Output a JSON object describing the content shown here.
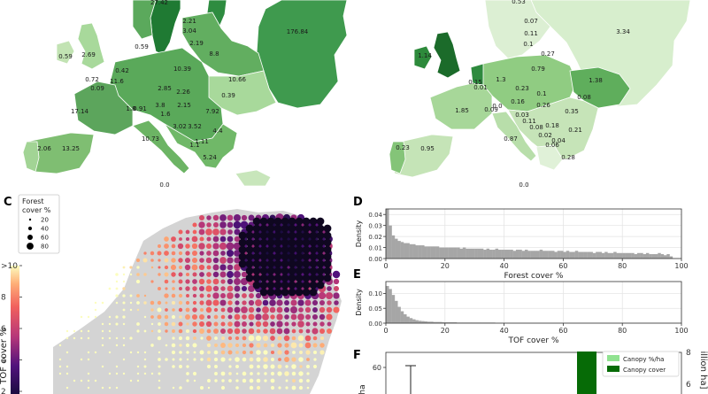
{
  "panels": {
    "C": "C",
    "D": "D",
    "E": "E",
    "F": "F"
  },
  "colors": {
    "land_gray": "#d4d4d4",
    "hist_bar": "#a6a6a6",
    "canopy_light": "#90e290",
    "canopy_dark": "#066b06"
  },
  "chart_data": [
    {
      "type": "choropleth",
      "panel": "A",
      "labels": [
        "27.42",
        "2.21",
        "176.84",
        "3.04",
        "0.59",
        "2.69",
        "0.59",
        "2.19",
        "8.8",
        "0.42",
        "10.39",
        "0.72",
        "11.6",
        "10.66",
        "0.09",
        "2.85",
        "2.26",
        "0.39",
        "17.14",
        "1.8",
        "0.91",
        "3.8",
        "2.15",
        "7.92",
        "1.6",
        "3.52",
        "3.02",
        "4.4",
        "10.73",
        "1.11",
        "1.1",
        "2.06",
        "13.25",
        "5.24",
        "0.0"
      ]
    },
    {
      "type": "choropleth",
      "panel": "B",
      "labels": [
        "0.53",
        "3.34",
        "0.07",
        "0.11",
        "1.14",
        "0.1",
        "0.79",
        "0.27",
        "1.3",
        "0.15",
        "0.01",
        "0.23",
        "0.1",
        "1.38",
        "0.08",
        "1.85",
        "0.09",
        "0.16",
        "0.26",
        "0.35",
        "0.0",
        "0.03",
        "0.11",
        "0.18",
        "0.08",
        "0.02",
        "0.21",
        "0.04",
        "0.87",
        "0.06",
        "0.23",
        "0.95",
        "0.28",
        "0.0"
      ]
    },
    {
      "type": "scatter",
      "panel": "C",
      "legend_title": "Forest\ncover %",
      "size_legend": [
        "20",
        "40",
        "60",
        "80"
      ],
      "colorbar": {
        "label": "TOF cover %",
        "ticks": [
          ">10",
          "8",
          "6",
          "4",
          "2"
        ],
        "range": [
          0,
          10
        ]
      }
    },
    {
      "type": "bar",
      "panel": "D",
      "xlabel": "Forest cover %",
      "ylabel": "Density",
      "xlim": [
        0,
        100
      ],
      "ylim": [
        0,
        0.045
      ],
      "xticks": [
        "0",
        "20",
        "40",
        "60",
        "80",
        "100"
      ],
      "yticks": [
        "0.00",
        "0.01",
        "0.02",
        "0.03",
        "0.04"
      ],
      "bin_width": 1,
      "values": [
        0.046,
        0.03,
        0.021,
        0.018,
        0.016,
        0.015,
        0.014,
        0.014,
        0.013,
        0.013,
        0.012,
        0.012,
        0.012,
        0.011,
        0.011,
        0.011,
        0.011,
        0.011,
        0.01,
        0.01,
        0.01,
        0.01,
        0.01,
        0.01,
        0.01,
        0.009,
        0.01,
        0.009,
        0.009,
        0.009,
        0.009,
        0.009,
        0.009,
        0.008,
        0.009,
        0.008,
        0.008,
        0.009,
        0.008,
        0.008,
        0.008,
        0.008,
        0.008,
        0.007,
        0.008,
        0.008,
        0.007,
        0.008,
        0.007,
        0.007,
        0.007,
        0.007,
        0.008,
        0.007,
        0.007,
        0.007,
        0.007,
        0.006,
        0.007,
        0.007,
        0.006,
        0.007,
        0.006,
        0.006,
        0.007,
        0.006,
        0.006,
        0.006,
        0.006,
        0.006,
        0.005,
        0.006,
        0.006,
        0.005,
        0.006,
        0.005,
        0.005,
        0.006,
        0.005,
        0.005,
        0.005,
        0.005,
        0.005,
        0.005,
        0.004,
        0.005,
        0.005,
        0.004,
        0.005,
        0.004,
        0.004,
        0.004,
        0.005,
        0.004,
        0.003,
        0.004,
        0.002,
        0,
        0,
        0
      ]
    },
    {
      "type": "bar",
      "panel": "E",
      "xlabel": "TOF cover %",
      "ylabel": "Density",
      "xlim": [
        0,
        100
      ],
      "ylim": [
        0,
        0.14
      ],
      "xticks": [
        "0",
        "20",
        "40",
        "60",
        "80",
        "100"
      ],
      "yticks": [
        "0.00",
        "0.05",
        "0.10"
      ],
      "bin_width": 1,
      "values": [
        0.125,
        0.115,
        0.095,
        0.075,
        0.055,
        0.04,
        0.03,
        0.022,
        0.017,
        0.013,
        0.01,
        0.008,
        0.007,
        0.006,
        0.005,
        0.005,
        0.004,
        0.004,
        0.004,
        0.003,
        0.003,
        0.003,
        0.003,
        0.003,
        0.002,
        0.002,
        0.002,
        0.002,
        0.002,
        0.002,
        0.002,
        0.002,
        0.002,
        0.002,
        0.002,
        0.002,
        0.002,
        0.001,
        0.001,
        0.001,
        0.001,
        0.001,
        0.001,
        0.001,
        0.001,
        0.001,
        0.001,
        0.001,
        0.001,
        0.001,
        0.001,
        0.001,
        0.001,
        0.001,
        0.001,
        0.001,
        0.001,
        0.001,
        0.001,
        0.001,
        0.001,
        0.001,
        0.001,
        0.001,
        0.001,
        0.001,
        0.001,
        0.001,
        0.001,
        0.001,
        0.001,
        0.001,
        0.001,
        0.001,
        0.001,
        0.001,
        0.001,
        0.001,
        0.001,
        0.001,
        0.001,
        0.001,
        0.001,
        0.001,
        0.001,
        0.001,
        0.001,
        0.001,
        0.001,
        0.001,
        0.001,
        0.001,
        0.001,
        0.001,
        0.001,
        0.001,
        0.001,
        0.001,
        0.001,
        0.001
      ]
    },
    {
      "type": "bar",
      "panel": "F",
      "ylabel_left": "ha",
      "ylabel_right": "illion ha]",
      "yticks_left": [
        "60"
      ],
      "yticks_right": [
        "8",
        "6"
      ],
      "series": [
        {
          "name": "Canopy %/ha",
          "color": "#90e290",
          "error_bar_top": 61
        },
        {
          "name": "Canopy cover",
          "color": "#066b06",
          "value": 7.9
        }
      ]
    }
  ]
}
